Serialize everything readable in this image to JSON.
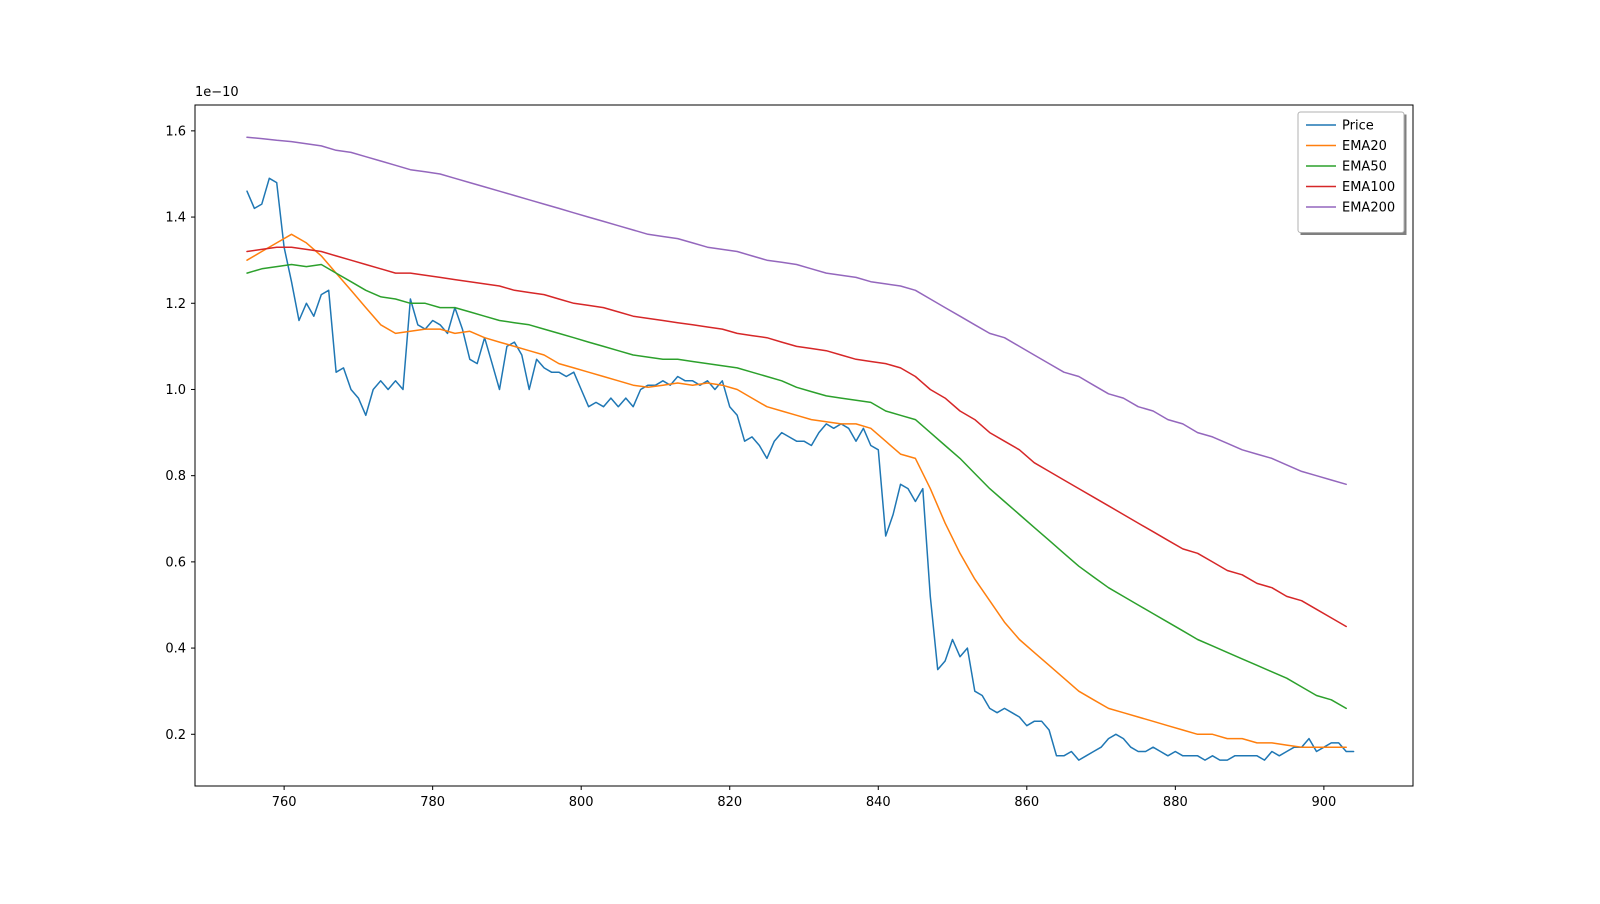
{
  "figure": {
    "background": "#ffffff"
  },
  "chart_data": {
    "type": "line",
    "title": "",
    "xlabel": "",
    "ylabel": "",
    "y_offset_label": "1e−10",
    "grid": false,
    "legend_position": "upper right",
    "xlim": [
      748,
      912
    ],
    "ylim": [
      0.08,
      1.66
    ],
    "x_ticks": [
      760,
      780,
      800,
      820,
      840,
      860,
      880,
      900
    ],
    "y_ticks": [
      0.2,
      0.4,
      0.6,
      0.8,
      1.0,
      1.2,
      1.4,
      1.6
    ],
    "legend_entries": [
      "Price",
      "EMA20",
      "EMA50",
      "EMA100",
      "EMA200"
    ],
    "series": [
      {
        "name": "Price",
        "color": "#1f77b4",
        "x_start": 755,
        "x_step": 1,
        "y": [
          1.46,
          1.42,
          1.43,
          1.49,
          1.48,
          1.33,
          1.25,
          1.16,
          1.2,
          1.17,
          1.22,
          1.23,
          1.04,
          1.05,
          1.0,
          0.98,
          0.94,
          1.0,
          1.02,
          1.0,
          1.02,
          1.0,
          1.21,
          1.15,
          1.14,
          1.16,
          1.15,
          1.13,
          1.19,
          1.14,
          1.07,
          1.06,
          1.12,
          1.06,
          1.0,
          1.1,
          1.11,
          1.08,
          1.0,
          1.07,
          1.05,
          1.04,
          1.04,
          1.03,
          1.04,
          1.0,
          0.96,
          0.97,
          0.96,
          0.98,
          0.96,
          0.98,
          0.96,
          1.0,
          1.01,
          1.01,
          1.02,
          1.01,
          1.03,
          1.02,
          1.02,
          1.01,
          1.02,
          1.0,
          1.02,
          0.96,
          0.94,
          0.88,
          0.89,
          0.87,
          0.84,
          0.88,
          0.9,
          0.89,
          0.88,
          0.88,
          0.87,
          0.9,
          0.92,
          0.91,
          0.92,
          0.91,
          0.88,
          0.91,
          0.87,
          0.86,
          0.66,
          0.71,
          0.78,
          0.77,
          0.74,
          0.77,
          0.52,
          0.35,
          0.37,
          0.42,
          0.38,
          0.4,
          0.3,
          0.29,
          0.26,
          0.25,
          0.26,
          0.25,
          0.24,
          0.22,
          0.23,
          0.23,
          0.21,
          0.15,
          0.15,
          0.16,
          0.14,
          0.15,
          0.16,
          0.17,
          0.19,
          0.2,
          0.19,
          0.17,
          0.16,
          0.16,
          0.17,
          0.16,
          0.15,
          0.16,
          0.15,
          0.15,
          0.15,
          0.14,
          0.15,
          0.14,
          0.14,
          0.15,
          0.15,
          0.15,
          0.15,
          0.14,
          0.16,
          0.15,
          0.16,
          0.17,
          0.17,
          0.19,
          0.16,
          0.17,
          0.18,
          0.18,
          0.16,
          0.16
        ]
      },
      {
        "name": "EMA20",
        "color": "#ff7f0e",
        "x_start": 755,
        "x_step": 2,
        "y": [
          1.3,
          1.32,
          1.34,
          1.36,
          1.34,
          1.31,
          1.27,
          1.23,
          1.19,
          1.15,
          1.13,
          1.135,
          1.14,
          1.14,
          1.13,
          1.135,
          1.12,
          1.11,
          1.1,
          1.09,
          1.08,
          1.06,
          1.05,
          1.04,
          1.03,
          1.02,
          1.01,
          1.005,
          1.01,
          1.015,
          1.01,
          1.015,
          1.01,
          1.0,
          0.98,
          0.96,
          0.95,
          0.94,
          0.93,
          0.925,
          0.92,
          0.92,
          0.91,
          0.88,
          0.85,
          0.84,
          0.77,
          0.69,
          0.62,
          0.56,
          0.51,
          0.46,
          0.42,
          0.39,
          0.36,
          0.33,
          0.3,
          0.28,
          0.26,
          0.25,
          0.24,
          0.23,
          0.22,
          0.21,
          0.2,
          0.2,
          0.19,
          0.19,
          0.18,
          0.18,
          0.175,
          0.17,
          0.17,
          0.17,
          0.17
        ]
      },
      {
        "name": "EMA50",
        "color": "#2ca02c",
        "x_start": 755,
        "x_step": 2,
        "y": [
          1.27,
          1.28,
          1.285,
          1.29,
          1.285,
          1.29,
          1.27,
          1.25,
          1.23,
          1.215,
          1.21,
          1.2,
          1.2,
          1.19,
          1.19,
          1.18,
          1.17,
          1.16,
          1.155,
          1.15,
          1.14,
          1.13,
          1.12,
          1.11,
          1.1,
          1.09,
          1.08,
          1.075,
          1.07,
          1.07,
          1.065,
          1.06,
          1.055,
          1.05,
          1.04,
          1.03,
          1.02,
          1.005,
          0.995,
          0.985,
          0.98,
          0.975,
          0.97,
          0.95,
          0.94,
          0.93,
          0.9,
          0.87,
          0.84,
          0.805,
          0.77,
          0.74,
          0.71,
          0.68,
          0.65,
          0.62,
          0.59,
          0.565,
          0.54,
          0.52,
          0.5,
          0.48,
          0.46,
          0.44,
          0.42,
          0.405,
          0.39,
          0.375,
          0.36,
          0.345,
          0.33,
          0.31,
          0.29,
          0.28,
          0.26
        ]
      },
      {
        "name": "EMA100",
        "color": "#d62728",
        "x_start": 755,
        "x_step": 2,
        "y": [
          1.32,
          1.325,
          1.33,
          1.33,
          1.325,
          1.32,
          1.31,
          1.3,
          1.29,
          1.28,
          1.27,
          1.27,
          1.265,
          1.26,
          1.255,
          1.25,
          1.245,
          1.24,
          1.23,
          1.225,
          1.22,
          1.21,
          1.2,
          1.195,
          1.19,
          1.18,
          1.17,
          1.165,
          1.16,
          1.155,
          1.15,
          1.145,
          1.14,
          1.13,
          1.125,
          1.12,
          1.11,
          1.1,
          1.095,
          1.09,
          1.08,
          1.07,
          1.065,
          1.06,
          1.05,
          1.03,
          1.0,
          0.98,
          0.95,
          0.93,
          0.9,
          0.88,
          0.86,
          0.83,
          0.81,
          0.79,
          0.77,
          0.75,
          0.73,
          0.71,
          0.69,
          0.67,
          0.65,
          0.63,
          0.62,
          0.6,
          0.58,
          0.57,
          0.55,
          0.54,
          0.52,
          0.51,
          0.49,
          0.47,
          0.45
        ]
      },
      {
        "name": "EMA200",
        "color": "#9467bd",
        "x_start": 755,
        "x_step": 2,
        "y": [
          1.585,
          1.582,
          1.578,
          1.575,
          1.57,
          1.565,
          1.555,
          1.55,
          1.54,
          1.53,
          1.52,
          1.51,
          1.505,
          1.5,
          1.49,
          1.48,
          1.47,
          1.46,
          1.45,
          1.44,
          1.43,
          1.42,
          1.41,
          1.4,
          1.39,
          1.38,
          1.37,
          1.36,
          1.355,
          1.35,
          1.34,
          1.33,
          1.325,
          1.32,
          1.31,
          1.3,
          1.295,
          1.29,
          1.28,
          1.27,
          1.265,
          1.26,
          1.25,
          1.245,
          1.24,
          1.23,
          1.21,
          1.19,
          1.17,
          1.15,
          1.13,
          1.12,
          1.1,
          1.08,
          1.06,
          1.04,
          1.03,
          1.01,
          0.99,
          0.98,
          0.96,
          0.95,
          0.93,
          0.92,
          0.9,
          0.89,
          0.875,
          0.86,
          0.85,
          0.84,
          0.825,
          0.81,
          0.8,
          0.79,
          0.78
        ]
      }
    ]
  }
}
